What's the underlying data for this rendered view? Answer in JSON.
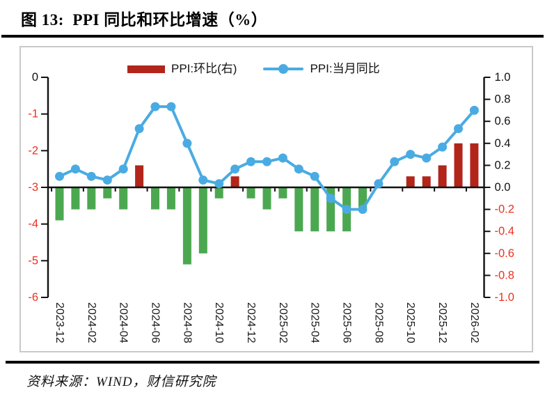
{
  "header": {
    "title": "图 13:  PPI 同比和环比增速（%）"
  },
  "legend": {
    "bar_label": "PPI:环比(右)",
    "line_label": "PPI:当月同比"
  },
  "footer": {
    "source": "资料来源：WIND，财信研究院"
  },
  "colors": {
    "bar_positive_red": "#b2251b",
    "bar_negative_green": "#4ca850",
    "line_blue": "#4aabe3",
    "negative_tick_red": "#ef2f1f",
    "axis_black": "#111111",
    "x_label_black": "#1a1a1a",
    "chart_border_gray": "#c9c9c9"
  },
  "chart_data": {
    "type": "combo",
    "title": "PPI 同比和环比增速（%）",
    "grid": false,
    "legend_position": "top",
    "categories": [
      "2023-12",
      "2024-01",
      "2024-02",
      "2024-03",
      "2024-04",
      "2024-05",
      "2024-06",
      "2024-07",
      "2024-08",
      "2024-09",
      "2024-10",
      "2024-11",
      "2024-12",
      "2025-01",
      "2025-02",
      "2025-03",
      "2025-04",
      "2025-05",
      "2025-06",
      "2025-07",
      "2025-08",
      "2025-09",
      "2025-10",
      "2025-11",
      "2025-12",
      "2026-01",
      "2026-02"
    ],
    "x_axis_labels_shown": [
      "2023-12",
      "2024-02",
      "2024-04",
      "2024-06",
      "2024-08",
      "2024-10",
      "2024-12",
      "2025-02",
      "2025-04",
      "2025-06",
      "2025-08",
      "2025-10",
      "2025-12",
      "2026-02"
    ],
    "series": [
      {
        "name": "PPI:环比(右)",
        "type": "bar",
        "axis": "right",
        "values": [
          -0.3,
          -0.2,
          -0.2,
          -0.1,
          -0.2,
          0.2,
          -0.2,
          -0.2,
          -0.7,
          -0.6,
          -0.1,
          0.1,
          -0.1,
          -0.2,
          -0.1,
          -0.4,
          -0.4,
          -0.4,
          -0.4,
          -0.2,
          0.0,
          0.0,
          0.1,
          0.1,
          0.2,
          0.4,
          0.4
        ]
      },
      {
        "name": "PPI:当月同比",
        "type": "line",
        "axis": "left",
        "values": [
          -2.7,
          -2.5,
          -2.7,
          -2.8,
          -2.5,
          -1.4,
          -0.8,
          -0.8,
          -1.8,
          -2.8,
          -2.9,
          -2.5,
          -2.3,
          -2.3,
          -2.2,
          -2.5,
          -2.7,
          -3.3,
          -3.6,
          -3.6,
          -2.9,
          -2.3,
          -2.1,
          -2.2,
          -1.9,
          -1.4,
          -0.9
        ]
      }
    ],
    "left_axis": {
      "range": [
        -6,
        0
      ],
      "tick_labels": [
        "0",
        "-1",
        "-2",
        "-3",
        "-4",
        "-5",
        "-6"
      ]
    },
    "right_axis": {
      "range": [
        -1.0,
        1.0
      ],
      "tick_labels": [
        "1.0",
        "0.8",
        "0.6",
        "0.4",
        "0.2",
        "0.0",
        "-0.2",
        "-0.4",
        "-0.6",
        "-0.8",
        "-1.0"
      ]
    }
  }
}
